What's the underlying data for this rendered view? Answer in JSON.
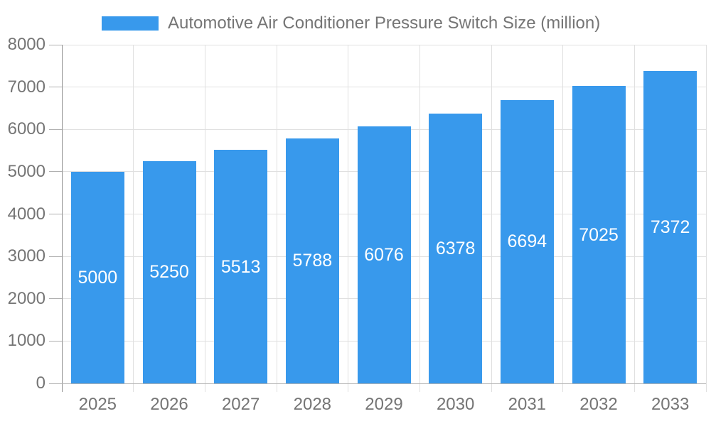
{
  "chart_data": {
    "type": "bar",
    "title": "Automotive Air Conditioner Pressure Switch Size (million)",
    "series_name": "Automotive Air Conditioner Pressure Switch Size (million)",
    "categories": [
      "2025",
      "2026",
      "2027",
      "2028",
      "2029",
      "2030",
      "2031",
      "2032",
      "2033"
    ],
    "values": [
      5000,
      5250,
      5513,
      5788,
      6076,
      6378,
      6694,
      7025,
      7372
    ],
    "xlabel": "",
    "ylabel": "",
    "ylim": [
      0,
      8000
    ],
    "y_tick_step": 1000,
    "y_tick_labels": [
      "0",
      "1000",
      "2000",
      "3000",
      "4000",
      "5000",
      "6000",
      "7000",
      "8000"
    ],
    "grid": true,
    "legend_position": "top",
    "bar_label_position": "inside-center",
    "bar_color": "#3899EC",
    "bar_label_color": "#FFFFFF",
    "axis_text_color": "#757575",
    "grid_color": "#E0E0E0",
    "x_axis_line_color": "#B3B3B3",
    "y_axis_line_color": "#909090",
    "tick_color": "#B0B0B0",
    "background_color": "#FFFFFF"
  }
}
